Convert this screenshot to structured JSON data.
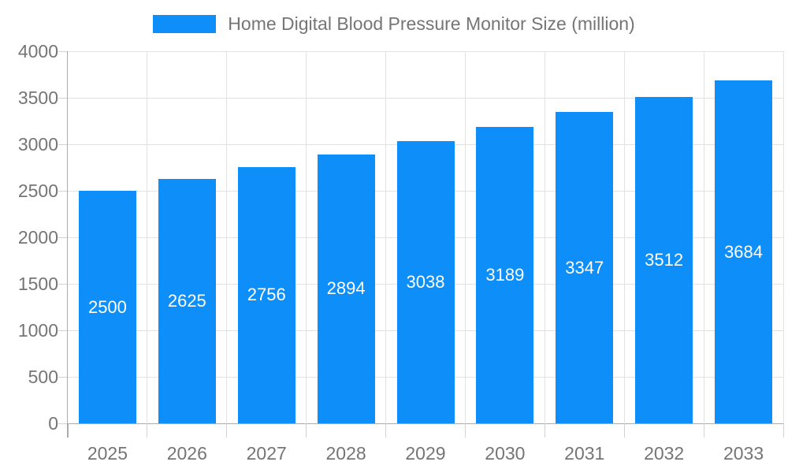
{
  "legend": {
    "label": "Home Digital Blood Pressure Monitor Size (million)"
  },
  "chart_data": {
    "type": "bar",
    "title": "",
    "xlabel": "",
    "ylabel": "",
    "categories": [
      "2025",
      "2026",
      "2027",
      "2028",
      "2029",
      "2030",
      "2031",
      "2032",
      "2033"
    ],
    "series": [
      {
        "name": "Home Digital Blood Pressure Monitor Size (million)",
        "values": [
          2500,
          2625,
          2756,
          2894,
          3038,
          3189,
          3347,
          3512,
          3684
        ]
      }
    ],
    "ylim": [
      0,
      4000
    ],
    "ytick_step": 500,
    "yticks": [
      0,
      500,
      1000,
      1500,
      2000,
      2500,
      3000,
      3500,
      4000
    ],
    "grid": true,
    "legend_position": "top",
    "bar_labels_inside": true,
    "colors": {
      "bar": "#0d8ef9",
      "bar_label_text": "#ffffff",
      "axis_label_text": "#757575",
      "gridline": "#e2e2e2",
      "axis_line": "#ababab",
      "tick": "#d2d2d2",
      "background": "#ffffff"
    }
  }
}
